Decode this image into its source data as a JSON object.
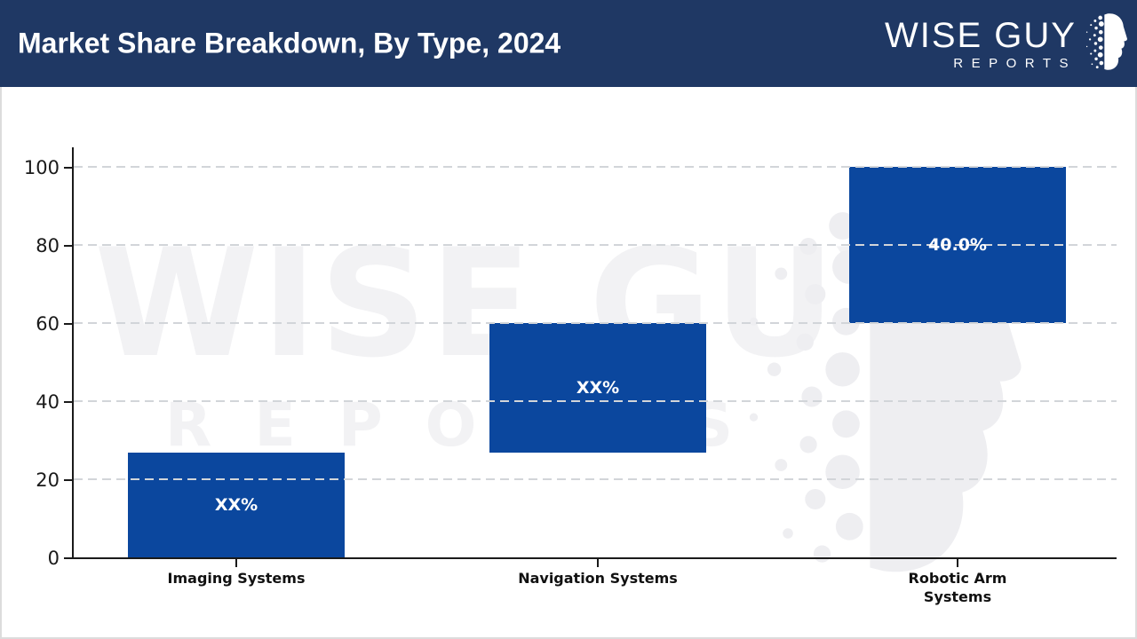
{
  "header": {
    "title": "Market Share Breakdown, By Type, 2024",
    "logo": {
      "wordmark": "WISE GUY",
      "subtitle": "REPORTS"
    }
  },
  "watermark": {
    "wordmark": "WISE GUY",
    "subtitle": "REPORTS"
  },
  "chart_data": {
    "type": "bar",
    "subtype": "waterfall",
    "title": "Market Share Breakdown, By Type, 2024",
    "categories": [
      "Imaging Systems",
      "Navigation Systems",
      "Robotic Arm Systems"
    ],
    "category_label_lines": [
      [
        "Imaging Systems"
      ],
      [
        "Navigation Systems"
      ],
      [
        "Robotic Arm",
        "Systems"
      ]
    ],
    "segments": [
      {
        "category": "Imaging Systems",
        "start": 0,
        "end": 26.8,
        "value": 26.8,
        "label": "XX%"
      },
      {
        "category": "Navigation Systems",
        "start": 26.8,
        "end": 60,
        "value": 33.2,
        "label": "XX%"
      },
      {
        "category": "Robotic Arm Systems",
        "start": 60,
        "end": 100,
        "value": 40.0,
        "label": "40.0%"
      }
    ],
    "xlabel": "",
    "ylabel": "",
    "yticks": [
      0,
      20,
      40,
      60,
      80,
      100
    ],
    "ylim": [
      0,
      105
    ],
    "grid": {
      "axis": "y",
      "style": "dashed"
    },
    "legend": "none",
    "bar_color": "#0b479e",
    "bar_label_color": "#ffffff"
  },
  "colors": {
    "header_bg": "#1f3864",
    "bar": "#0b479e",
    "axis": "#1a1a1a",
    "gridline": "#d2d5d9",
    "watermark": "#f2f2f4",
    "content_border": "#dcdcdc"
  }
}
